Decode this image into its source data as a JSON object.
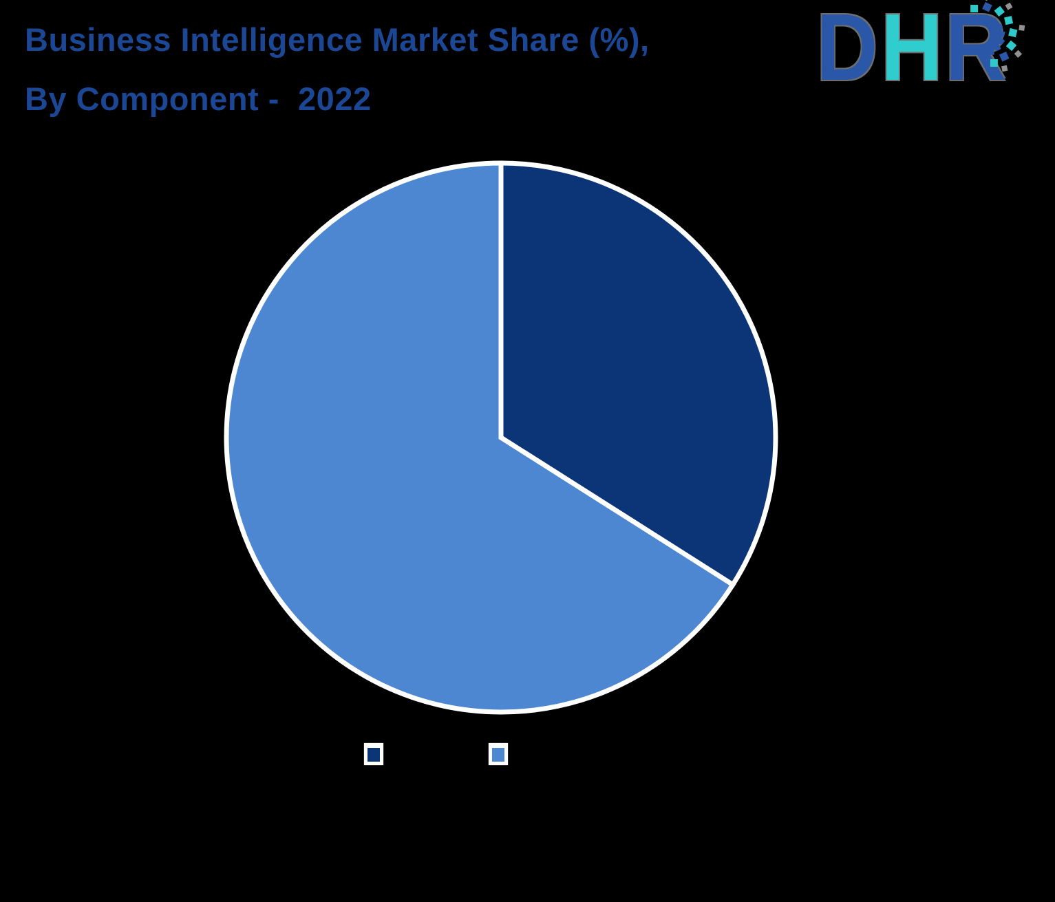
{
  "page": {
    "background": "#000000"
  },
  "title": {
    "line1": "Business Intelligence Market Share (%),",
    "line2": "By Component -  2022",
    "color": "#1b4794"
  },
  "logo": {
    "letters": [
      {
        "text": "D",
        "color": "#2b57a8"
      },
      {
        "text": "H",
        "color": "#2fcdcd"
      },
      {
        "text": "R",
        "color": "#2b57a8"
      }
    ],
    "dot_colors": {
      "teal": "#2fc9c9",
      "blue": "#2b57a8",
      "gray": "#919191"
    }
  },
  "chart_data": {
    "type": "pie",
    "title": "Business Intelligence Market Share (%), By Component - 2022",
    "segments": [
      {
        "label": "",
        "value": 34,
        "color": "#0b3576"
      },
      {
        "label": "",
        "value": 66,
        "color": "#4e87d1"
      }
    ],
    "start_angle_deg": 0,
    "direction": "clockwise",
    "separator_color": "#ffffff",
    "legend_position": "bottom",
    "legend_labels_visible": false
  }
}
